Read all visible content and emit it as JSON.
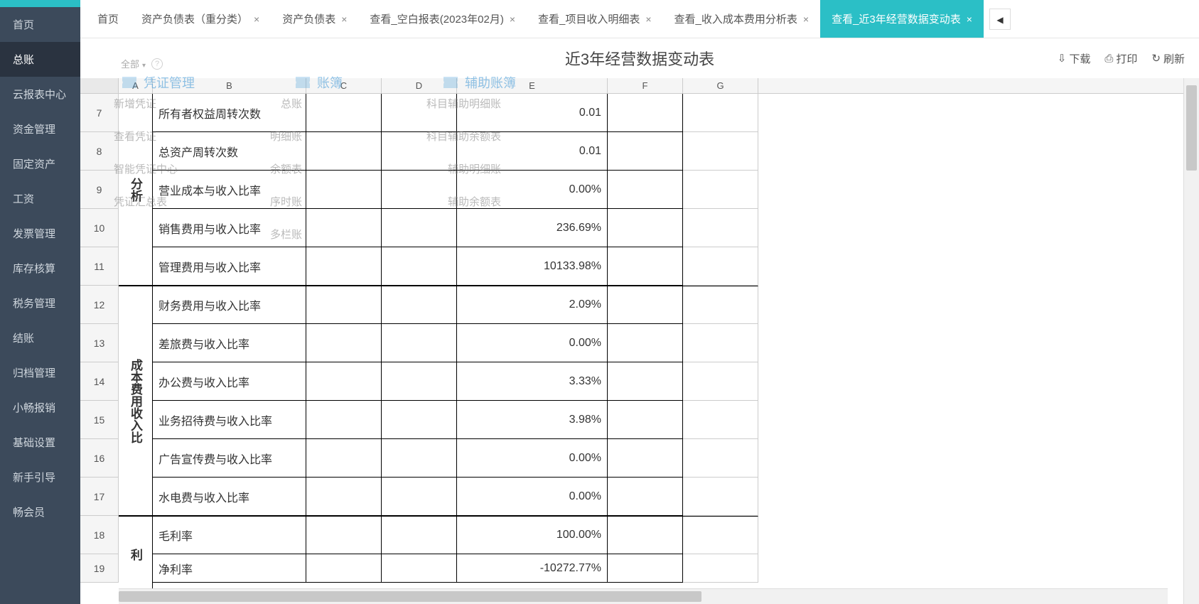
{
  "sidebar": {
    "items": [
      {
        "label": "首页"
      },
      {
        "label": "总账",
        "active": true
      },
      {
        "label": "云报表中心"
      },
      {
        "label": "资金管理"
      },
      {
        "label": "固定资产"
      },
      {
        "label": "工资"
      },
      {
        "label": "发票管理"
      },
      {
        "label": "库存核算"
      },
      {
        "label": "税务管理"
      },
      {
        "label": "结账"
      },
      {
        "label": "归档管理"
      },
      {
        "label": "小畅报销"
      },
      {
        "label": "基础设置"
      },
      {
        "label": "新手引导"
      },
      {
        "label": "畅会员"
      }
    ]
  },
  "tabs": [
    {
      "label": "首页",
      "closable": false
    },
    {
      "label": "资产负债表（重分类）",
      "closable": true
    },
    {
      "label": "资产负债表",
      "closable": true
    },
    {
      "label": "查看_空白报表(2023年02月)",
      "closable": true
    },
    {
      "label": "查看_项目收入明细表",
      "closable": true
    },
    {
      "label": "查看_收入成本费用分析表",
      "closable": true
    },
    {
      "label": "查看_近3年经营数据变动表",
      "closable": true,
      "active": true
    }
  ],
  "page": {
    "title": "近3年经营数据变动表",
    "actions": {
      "download": "下载",
      "print": "打印",
      "refresh": "刷新"
    }
  },
  "ghost": {
    "filter": "全部",
    "tabs": [
      "凭证管理",
      "账簿",
      "辅助账簿"
    ],
    "col1": [
      "新增凭证",
      "查看凭证",
      "智能凭证中心",
      "凭证汇总表"
    ],
    "col2": [
      "总账",
      "明细账",
      "余额表",
      "序时账",
      "多栏账"
    ],
    "col3": [
      "科目辅助明细账",
      "科目辅助余额表",
      "辅助明细账",
      "辅助余额表"
    ]
  },
  "sheet": {
    "columns": [
      "A",
      "B",
      "C",
      "D",
      "E",
      "F",
      "G"
    ],
    "colWidths": {
      "A": 48,
      "B": 216,
      "C": 106,
      "D": 106,
      "E": 212,
      "F": 106,
      "G": 106
    },
    "rows": [
      {
        "num": 7,
        "A": "分析",
        "B": "所有者权益周转次数",
        "E": "0.01",
        "section": "top"
      },
      {
        "num": 8,
        "B": "总资产周转次数",
        "E": "0.01",
        "section": "top"
      },
      {
        "num": 9,
        "B": "营业成本与收入比率",
        "E": "0.00%",
        "section": "top"
      },
      {
        "num": 10,
        "B": "销售费用与收入比率",
        "E": "236.69%",
        "section": "top"
      },
      {
        "num": 11,
        "B": "管理费用与收入比率",
        "E": "10133.98%",
        "section": "top"
      },
      {
        "num": 12,
        "A": "成本费用收入比",
        "B": "财务费用与收入比率",
        "E": "2.09%"
      },
      {
        "num": 13,
        "B": "差旅费与收入比率",
        "E": "0.00%"
      },
      {
        "num": 14,
        "B": "办公费与收入比率",
        "E": "3.33%"
      },
      {
        "num": 15,
        "B": "业务招待费与收入比率",
        "E": "3.98%"
      },
      {
        "num": 16,
        "B": "广告宣传费与收入比率",
        "E": "0.00%"
      },
      {
        "num": 17,
        "B": "水电费与收入比率",
        "E": "0.00%"
      },
      {
        "num": 18,
        "A": "利",
        "B": "毛利率",
        "E": "100.00%"
      },
      {
        "num": 19,
        "B": "净利率",
        "E": "-10272.77%"
      }
    ]
  }
}
